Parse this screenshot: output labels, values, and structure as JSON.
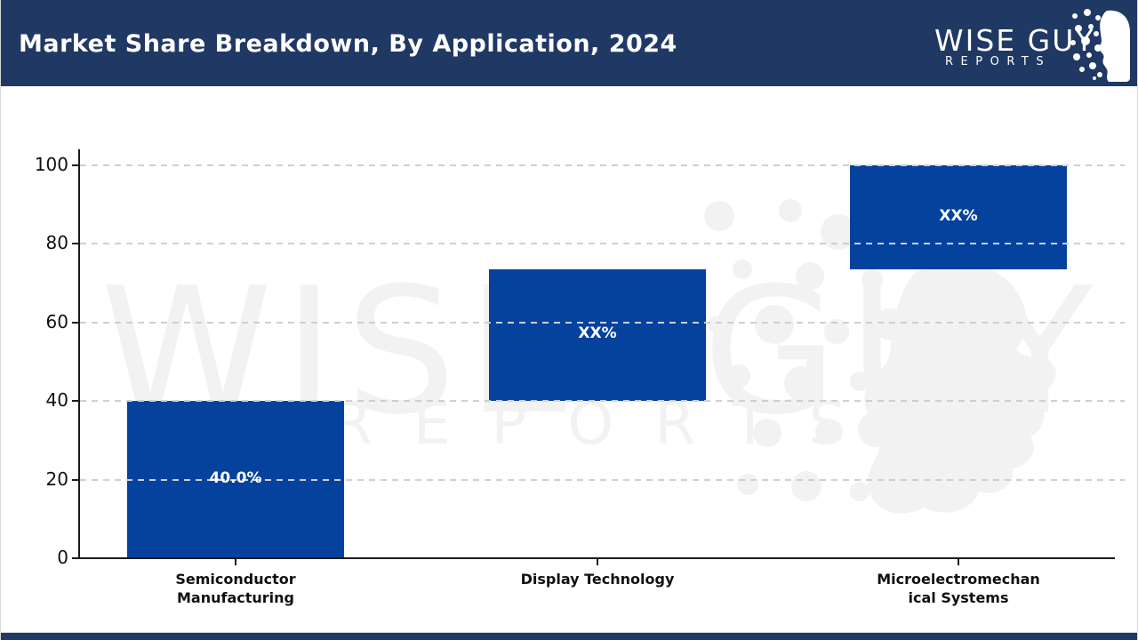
{
  "header": {
    "title": "Market Share Breakdown, By Application, 2024",
    "logo": {
      "line1": "WISE GUY",
      "line2": "REPORTS"
    }
  },
  "watermark": {
    "line1": "WISE GUY",
    "line2": "REPORTS"
  },
  "colors": {
    "header_bg": "#203864",
    "footer_bg": "#203864",
    "bar_blue": "#05429d",
    "gridline": "#cccfd4",
    "axis": "#1a1a1a",
    "value_label": "#ffffff",
    "watermark": "#f2f2f2"
  },
  "chart_data": {
    "type": "bar",
    "variant": "floating-segment-market-share",
    "title": "Market Share Breakdown, By Application, 2024",
    "categories": [
      "Semiconductor Manufacturing",
      "Display Technology",
      "Microelectromechanical Systems"
    ],
    "category_display": [
      [
        "Semiconductor",
        "Manufacturing"
      ],
      [
        "Display Technology"
      ],
      [
        "Microelectromechan",
        "ical Systems"
      ]
    ],
    "segments": [
      {
        "start": 0,
        "end": 40
      },
      {
        "start": 40,
        "end": 73.5
      },
      {
        "start": 73.5,
        "end": 100
      }
    ],
    "bar_labels": [
      "40.0%",
      "XX%",
      "XX%"
    ],
    "xlabel": "",
    "ylabel": "",
    "ylim": [
      0,
      100
    ],
    "yticks": [
      0,
      20,
      40,
      60,
      80,
      100
    ],
    "grid": "horizontal-dashed-over-bars",
    "legend": "none",
    "bar_color": "#05429d",
    "label_color": "#ffffff"
  }
}
